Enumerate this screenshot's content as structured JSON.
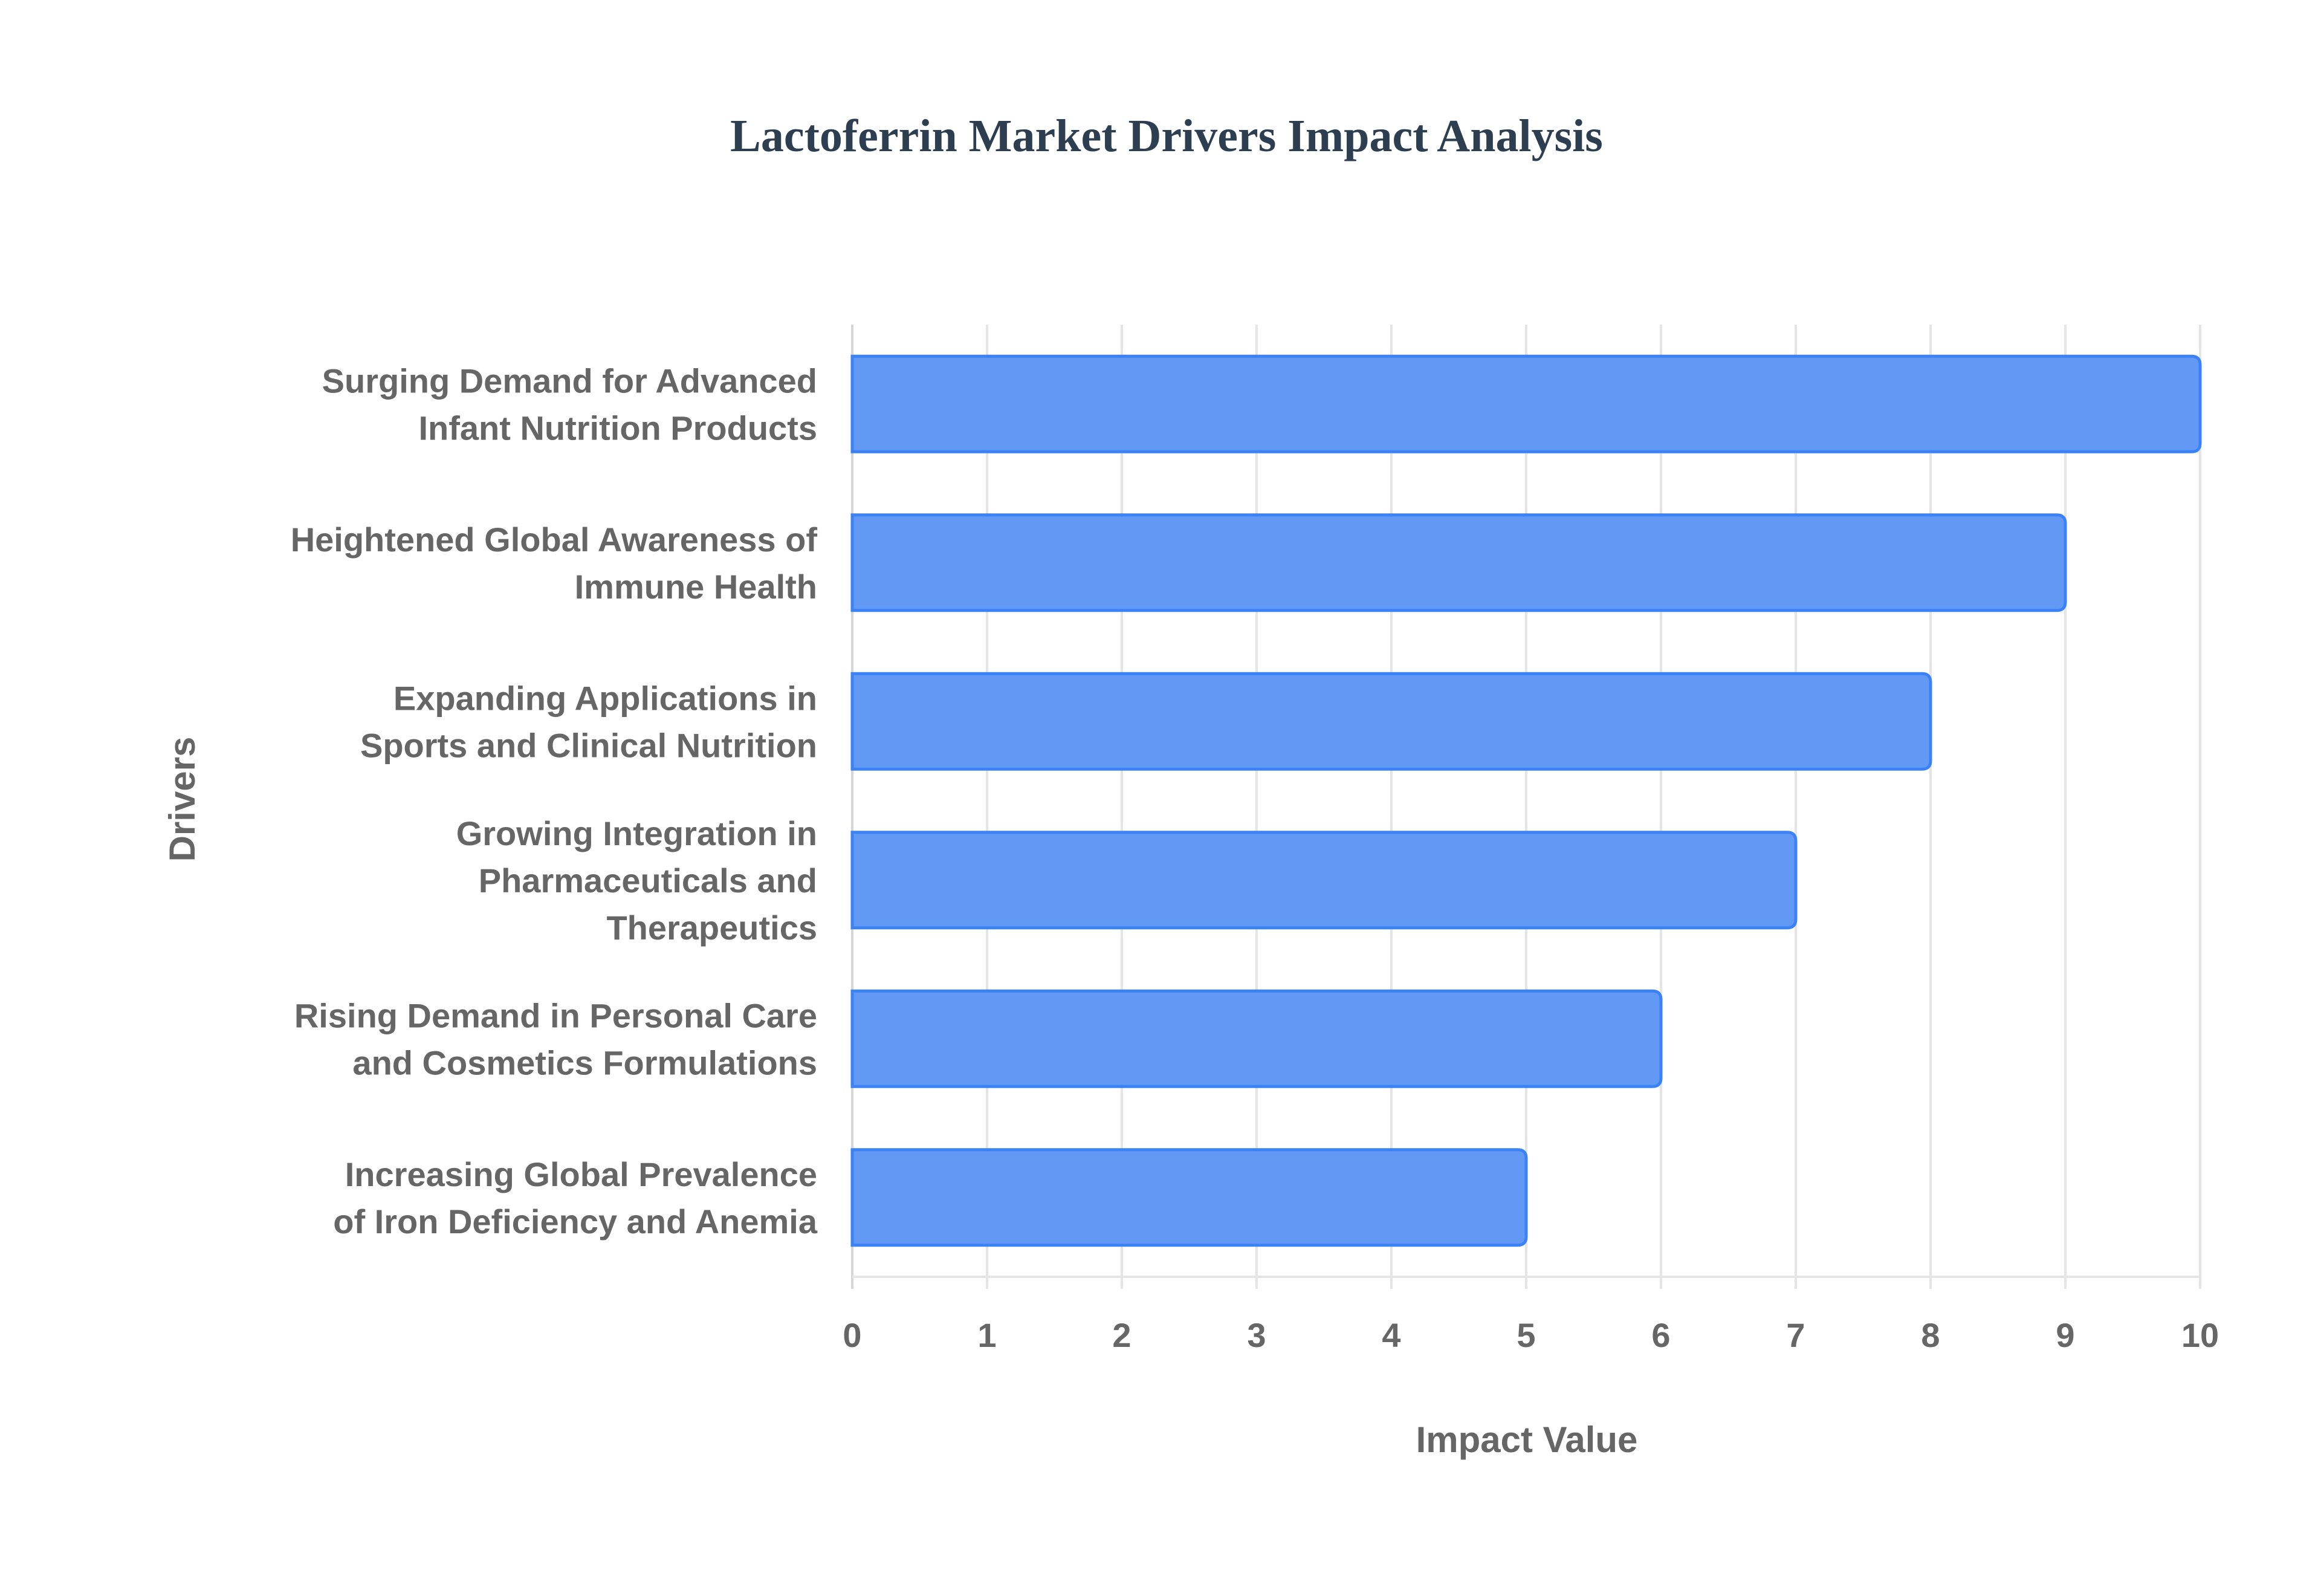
{
  "chart_data": {
    "type": "bar",
    "orientation": "horizontal",
    "title": "Lactoferrin Market Drivers Impact Analysis",
    "xlabel": "Impact Value",
    "ylabel": "Drivers",
    "xlim": [
      0,
      10
    ],
    "xticks": [
      "0",
      "1",
      "2",
      "3",
      "4",
      "5",
      "6",
      "7",
      "8",
      "9",
      "10"
    ],
    "grid": true,
    "categories": [
      [
        "Surging Demand for Advanced",
        "Infant Nutrition Products"
      ],
      [
        "Heightened Global Awareness of",
        "Immune Health"
      ],
      [
        "Expanding Applications in",
        "Sports and Clinical Nutrition"
      ],
      [
        "Growing Integration in",
        "Pharmaceuticals and",
        "Therapeutics"
      ],
      [
        "Rising Demand in Personal Care",
        "and Cosmetics Formulations"
      ],
      [
        "Increasing Global Prevalence",
        "of Iron Deficiency and Anemia"
      ]
    ],
    "values": [
      10,
      9,
      8,
      7,
      6,
      5
    ],
    "colors": {
      "bar_fill": "#6199f5",
      "bar_border": "#3b82f6",
      "grid": "#e5e5e5",
      "text": "#666666",
      "title": "#2c3e50"
    }
  }
}
